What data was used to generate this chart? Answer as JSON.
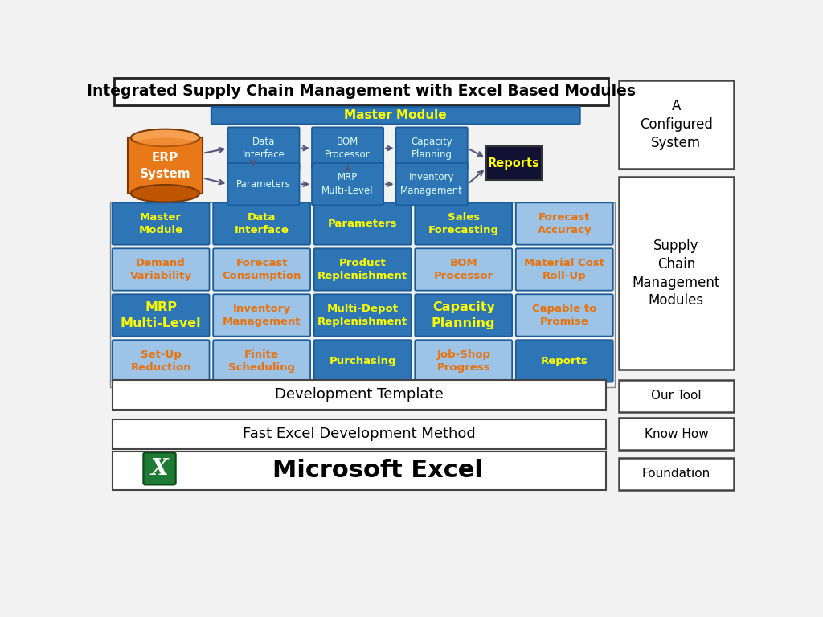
{
  "title": "Integrated Supply Chain Management with Excel Based Modules",
  "bg_color": "#f0f0f0",
  "box_blue_dark": "#2E75B6",
  "box_blue_light": "#9DC3E6",
  "box_orange": "#E8720C",
  "text_yellow": "#FFFF00",
  "text_orange": "#E8720C",
  "master_module_label": "Master Module",
  "erp_label": "ERP\nSystem",
  "reports_label": "Reports",
  "top_boxes": [
    {
      "label": "Data\nInterface",
      "col": 0,
      "row": 0
    },
    {
      "label": "BOM\nProcessor",
      "col": 1,
      "row": 0
    },
    {
      "label": "Capacity\nPlanning",
      "col": 2,
      "row": 0
    },
    {
      "label": "Parameters",
      "col": 0,
      "row": 1
    },
    {
      "label": "MRP\nMulti-Level",
      "col": 1,
      "row": 1
    },
    {
      "label": "Inventory\nManagement",
      "col": 2,
      "row": 1
    }
  ],
  "grid_rows": [
    [
      "Master\nModule",
      "Data\nInterface",
      "Parameters",
      "Sales\nForecasting",
      "Forecast\nAccuracy"
    ],
    [
      "Demand\nVariability",
      "Forecast\nConsumption",
      "Product\nReplenishment",
      "BOM\nProcessor",
      "Material Cost\nRoll-Up"
    ],
    [
      "MRP\nMulti-Level",
      "Inventory\nManagement",
      "Multi-Depot\nReplenishment",
      "Capacity\nPlanning",
      "Capable to\nPromise"
    ],
    [
      "Set-Up\nReduction",
      "Finite\nScheduling",
      "Purchasing",
      "Job-Shop\nProgress",
      "Reports"
    ]
  ],
  "grid_row_colors": [
    [
      "#2E75B6",
      "#2E75B6",
      "#2E75B6",
      "#2E75B6",
      "#9DC3E6"
    ],
    [
      "#9DC3E6",
      "#9DC3E6",
      "#2E75B6",
      "#9DC3E6",
      "#9DC3E6"
    ],
    [
      "#2E75B6",
      "#9DC3E6",
      "#2E75B6",
      "#2E75B6",
      "#9DC3E6"
    ],
    [
      "#9DC3E6",
      "#9DC3E6",
      "#2E75B6",
      "#9DC3E6",
      "#2E75B6"
    ]
  ],
  "grid_text_colors": [
    [
      "#FFFF00",
      "#FFFF00",
      "#FFFF00",
      "#FFFF00",
      "#E8720C"
    ],
    [
      "#E8720C",
      "#E8720C",
      "#FFFF00",
      "#E8720C",
      "#E8720C"
    ],
    [
      "#FFFF00",
      "#E8720C",
      "#FFFF00",
      "#FFFF00",
      "#E8720C"
    ],
    [
      "#E8720C",
      "#E8720C",
      "#FFFF00",
      "#E8720C",
      "#FFFF00"
    ]
  ],
  "grid_bold_large": [
    "MRP\nMulti-Level",
    "Capacity\nPlanning"
  ],
  "bottom_boxes": [
    {
      "label": "Development Template",
      "right_label": "Our Tool"
    },
    {
      "label": "Fast Excel Development Method",
      "right_label": "Know How"
    },
    {
      "label": "Microsoft Excel",
      "right_label": "Foundation"
    }
  ],
  "right_top_label": "A\nConfigured\nSystem",
  "right_mid_label": "Supply\nChain\nManagement\nModules"
}
